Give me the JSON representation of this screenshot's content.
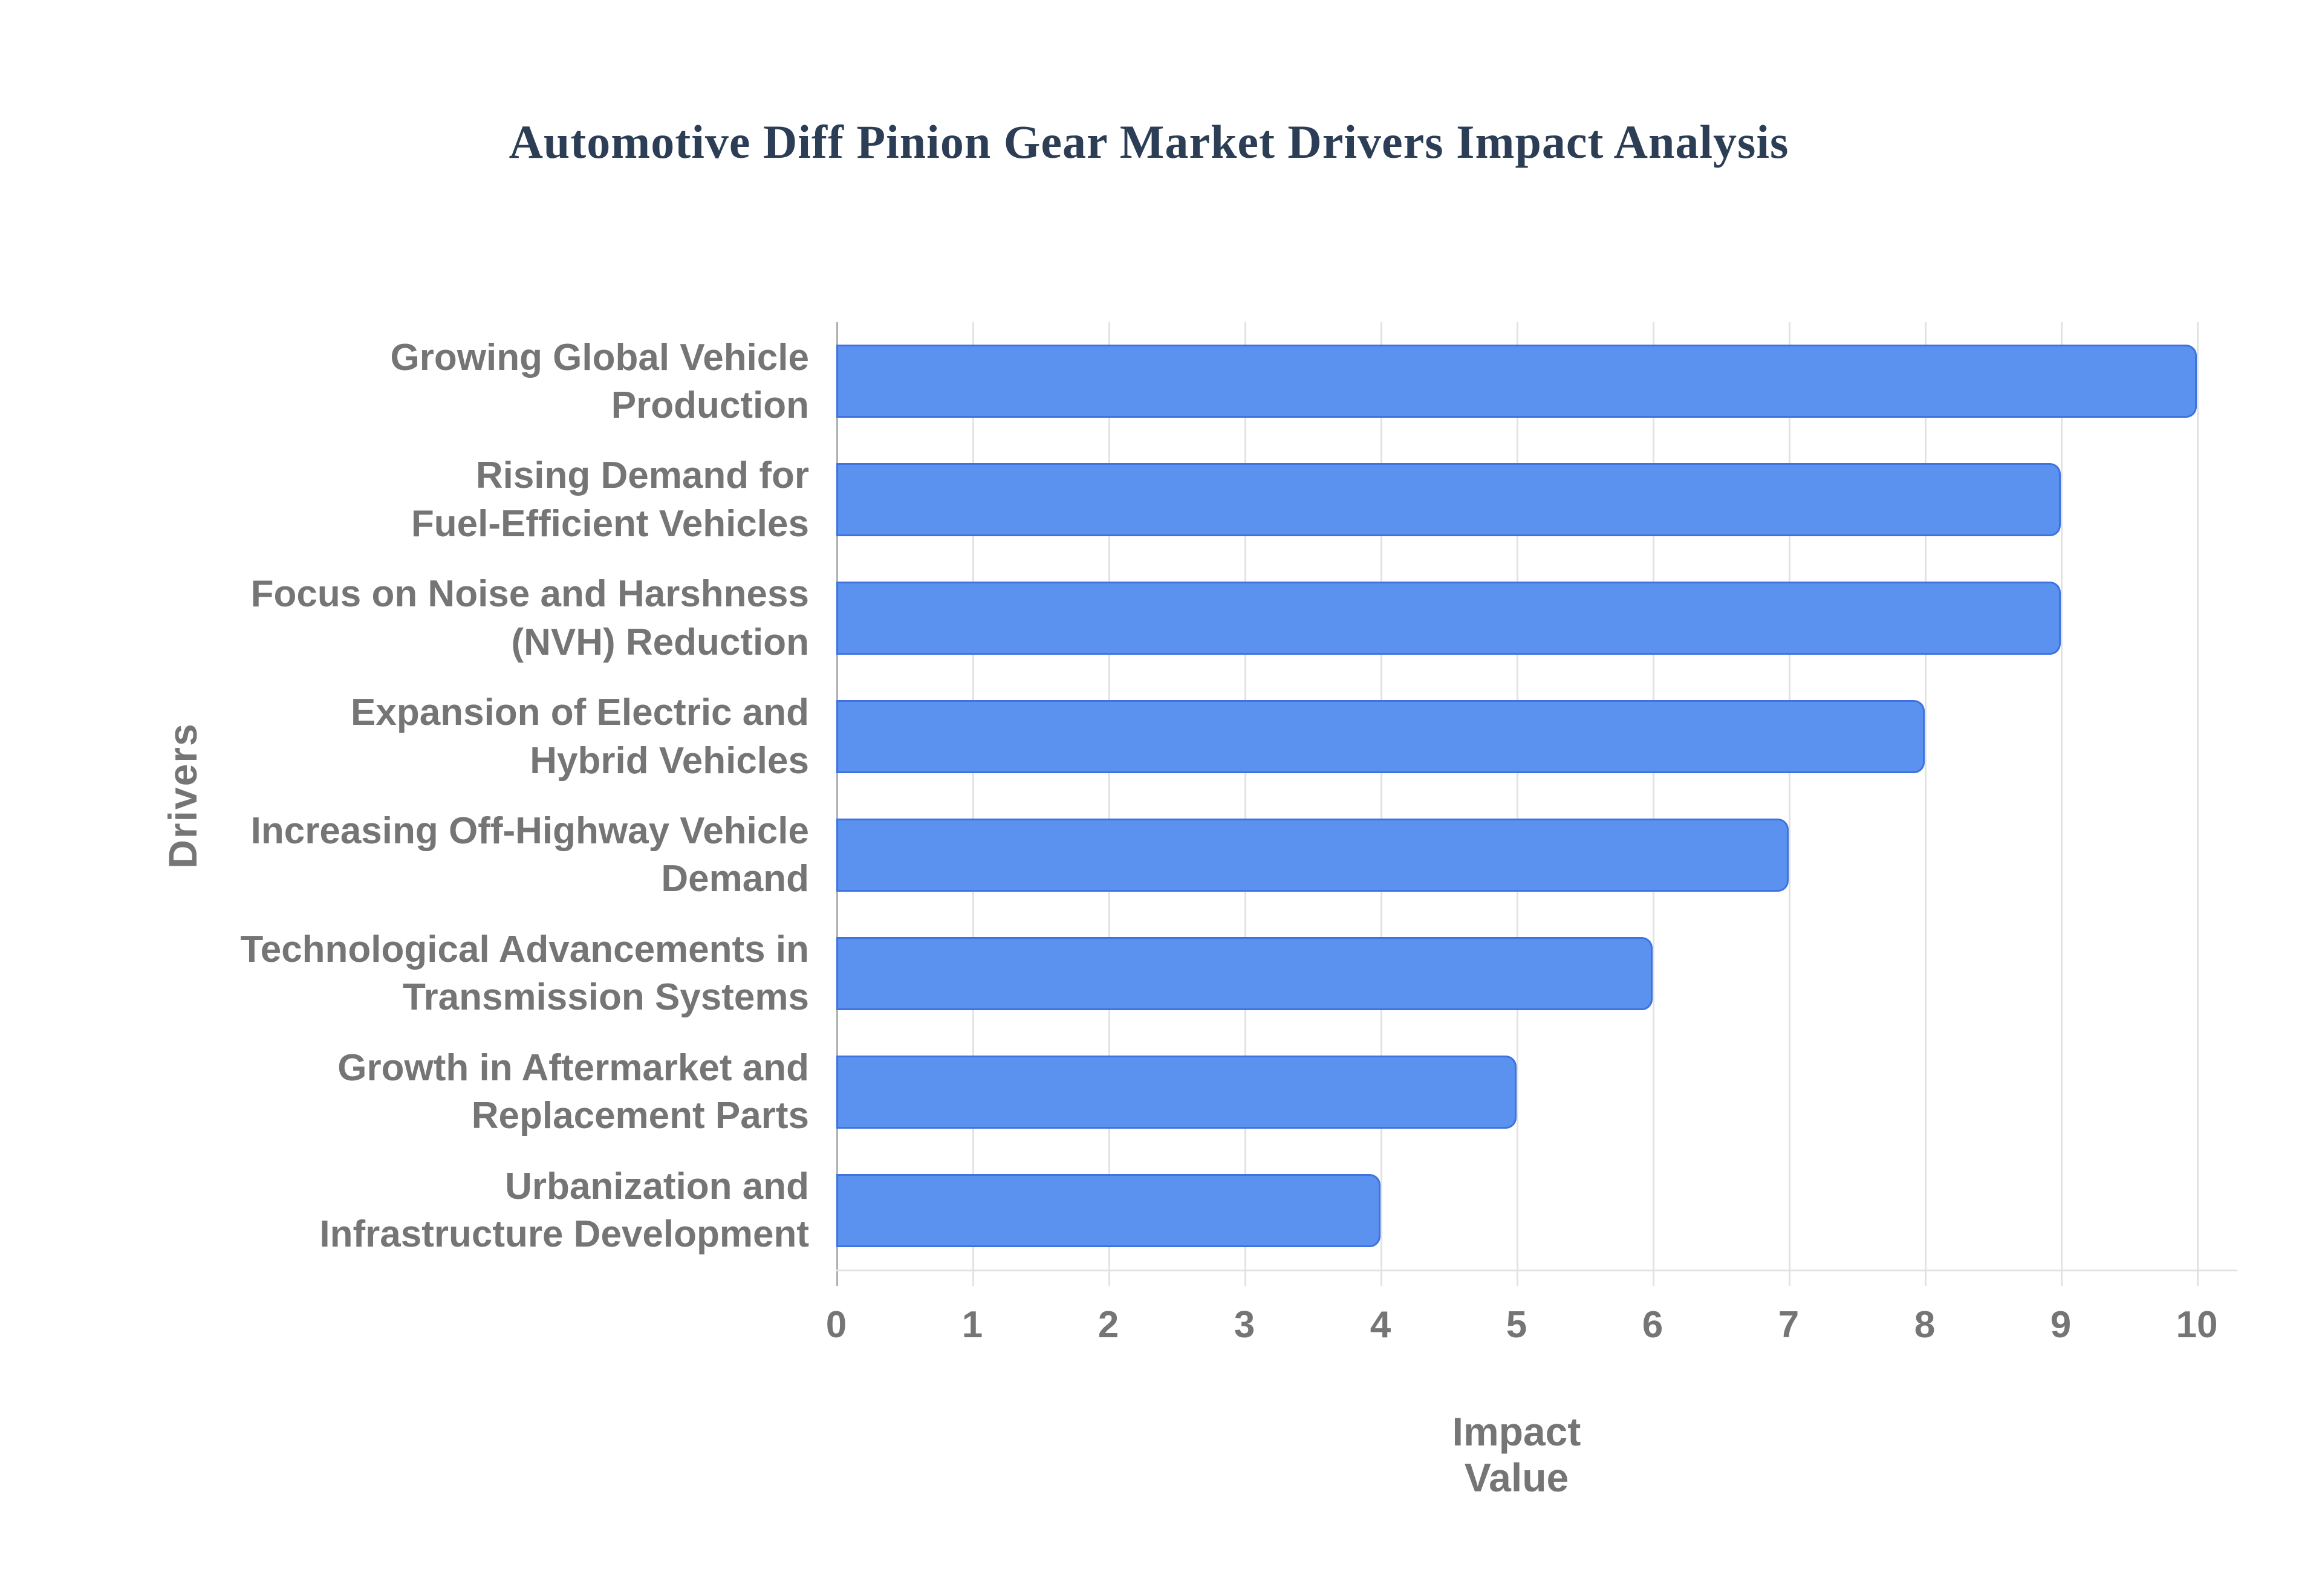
{
  "chart_data": {
    "type": "bar",
    "orientation": "horizontal",
    "title": "Automotive Diff Pinion Gear Market Drivers Impact Analysis",
    "xlabel": "Impact Value",
    "ylabel": "Drivers",
    "categories": [
      "Growing Global Vehicle Production",
      "Rising Demand for Fuel-Efficient Vehicles",
      "Focus on Noise and Harshness (NVH) Reduction",
      "Expansion of Electric and Hybrid Vehicles",
      "Increasing Off-Highway Vehicle Demand",
      "Technological Advancements in Transmission Systems",
      "Growth in Aftermarket and Replacement Parts",
      "Urbanization and Infrastructure Development"
    ],
    "category_lines": [
      "Growing Global Vehicle\nProduction",
      "Rising Demand for\nFuel-Efficient Vehicles",
      "Focus on Noise and Harshness\n(NVH) Reduction",
      "Expansion of Electric and\nHybrid Vehicles",
      "Increasing Off-Highway Vehicle\nDemand",
      "Technological Advancements in\nTransmission Systems",
      "Growth in Aftermarket and\nReplacement Parts",
      "Urbanization and\nInfrastructure Development"
    ],
    "values": [
      10,
      9,
      9,
      8,
      7,
      6,
      5,
      4
    ],
    "xlim": [
      0,
      10
    ],
    "xticks": [
      0,
      1,
      2,
      3,
      4,
      5,
      6,
      7,
      8,
      9,
      10
    ],
    "grid": "vertical-only",
    "legend": "none",
    "colors": {
      "bar_fill": "#5b92f0",
      "bar_border": "#3e73e0",
      "title_text": "#2c3e55",
      "axis_text": "#757575",
      "gridline": "#e2e2e2",
      "axis_line": "#b0b0b0"
    }
  }
}
